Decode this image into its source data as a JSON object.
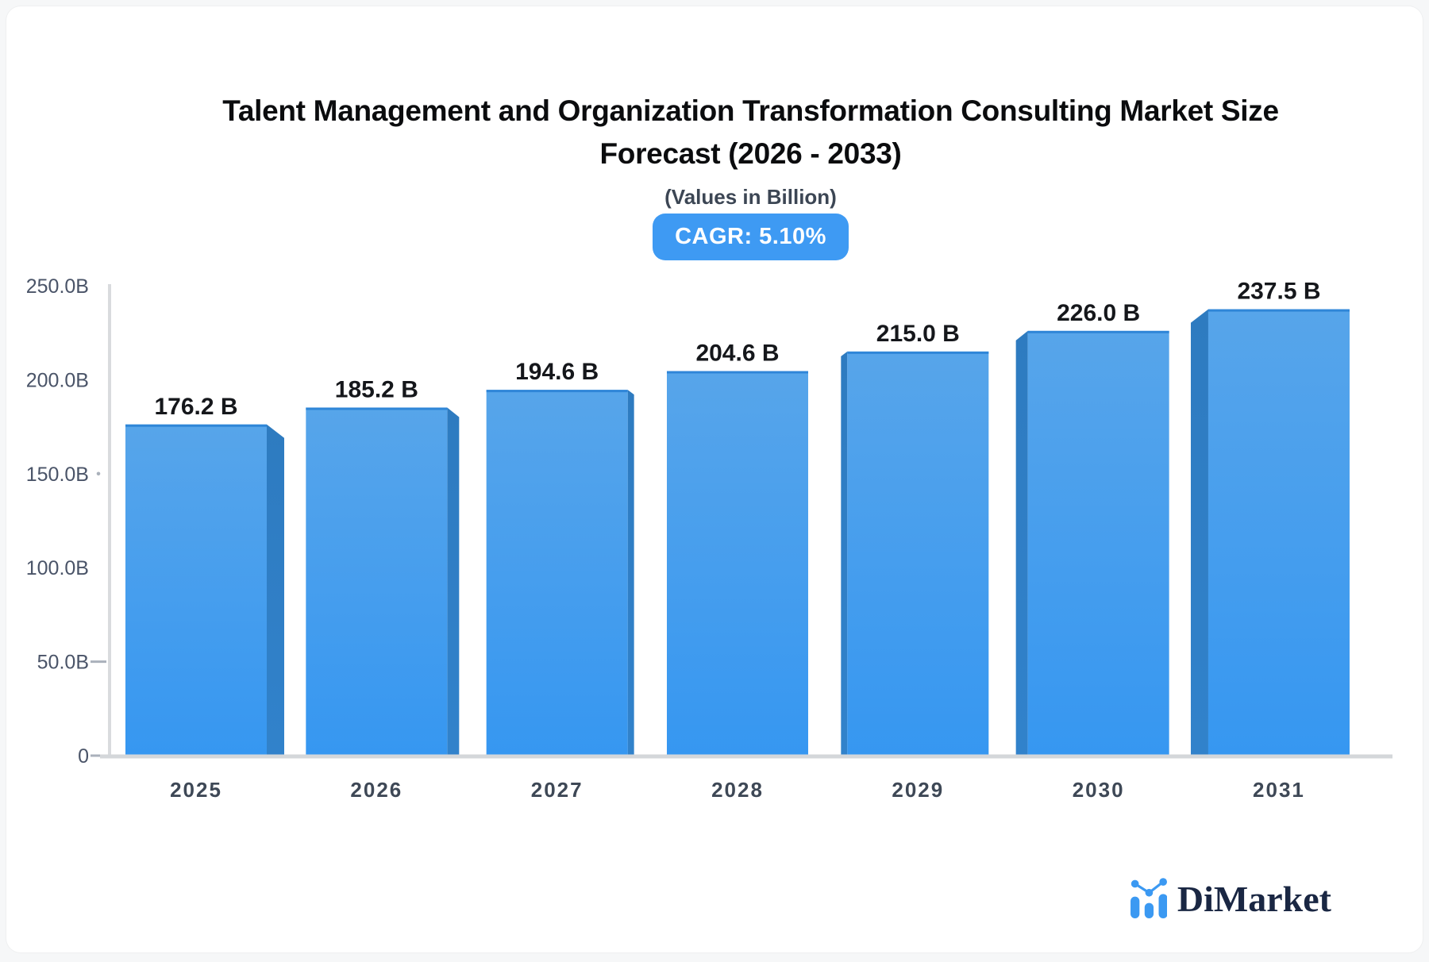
{
  "header": {
    "title_line1": "Talent Management and Organization Transformation Consulting Market Size",
    "title_line2": "Forecast (2026 - 2033)",
    "subtitle": "(Values in Billion)",
    "cagr_badge": "CAGR: 5.10%"
  },
  "chart_data": {
    "type": "bar",
    "title": "Talent Management and Organization Transformation Consulting Market Size Forecast (2026 - 2033)",
    "subtitle": "(Values in Billion)",
    "cagr": "CAGR: 5.10%",
    "categories": [
      "2025",
      "2026",
      "2027",
      "2028",
      "2029",
      "2030",
      "2031"
    ],
    "values": [
      176.2,
      185.2,
      194.6,
      204.6,
      215.0,
      226.0,
      237.5
    ],
    "value_labels": [
      "176.2 B",
      "185.2 B",
      "194.6 B",
      "204.6 B",
      "215.0 B",
      "226.0 B",
      "237.5 B"
    ],
    "unit": "B",
    "ylim": [
      0,
      250
    ],
    "grid": false,
    "legend": false,
    "y_axis": [
      {
        "v": 250,
        "label": "250.0B",
        "mark": "none"
      },
      {
        "v": 200,
        "label": "200.0B",
        "mark": "none"
      },
      {
        "v": 150,
        "label": "150.0B",
        "mark": "dot"
      },
      {
        "v": 100,
        "label": "100.0B",
        "mark": "none"
      },
      {
        "v": 50,
        "label": "50.0B",
        "mark": "dash"
      },
      {
        "v": 0,
        "label": "0",
        "mark": "dash"
      }
    ]
  },
  "colors": {
    "bar_face_top": "#57a5ea",
    "bar_face_bottom": "#3697f1",
    "bar_side": "#2e7bc0",
    "bar_top_edge": "#2f86d8",
    "axis_line": "#d9dbde",
    "baseline": "#d4d7da",
    "tick": "#aab1bb",
    "badge_bg": "#3e9af3",
    "brand_blue": "#3b99f2",
    "brand_navy": "#1a2743"
  },
  "footer": {
    "brand": "DiMarket",
    "logo_icon": "bar-line-chart-icon"
  }
}
